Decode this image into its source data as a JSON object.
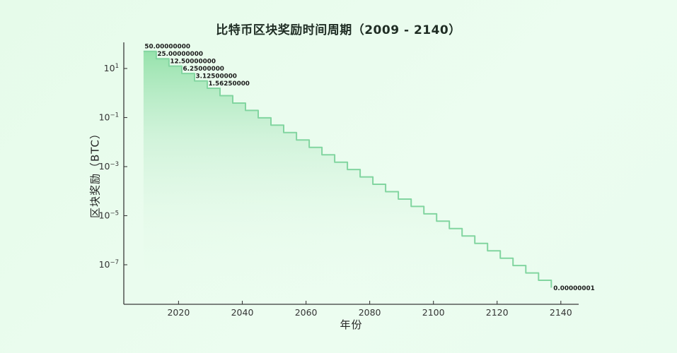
{
  "page": {
    "background_color": "#e9fcee"
  },
  "chart": {
    "title": "比特币区块奖励时间周期（2009 - 2140）",
    "xlabel": "年份",
    "ylabel": "区块奖励（BTC）"
  },
  "chart_data": {
    "type": "area",
    "step_mode": "post",
    "title": "比特币区块奖励时间周期（2009 - 2140）",
    "xlabel": "年份",
    "ylabel": "区块奖励（BTC）",
    "y_scale": "log",
    "grid": false,
    "x_years": [
      2009,
      2013,
      2017,
      2021,
      2025,
      2029,
      2033,
      2037,
      2041,
      2045,
      2049,
      2053,
      2057,
      2061,
      2065,
      2069,
      2073,
      2077,
      2081,
      2085,
      2089,
      2093,
      2097,
      2101,
      2105,
      2109,
      2113,
      2117,
      2121,
      2125,
      2129,
      2133,
      2137
    ],
    "rewards": [
      50,
      25,
      12.5,
      6.25,
      3.125,
      1.5625,
      0.78125,
      0.390625,
      0.1953125,
      0.09765625,
      0.048828125,
      0.0244140625,
      0.01220703125,
      0.006103515625,
      0.0030517578125,
      0.00152587890625,
      0.000762939453125,
      0.0003814697265625,
      0.00019073486328125,
      9.5367431640625e-05,
      4.76837158203125e-05,
      2.384185791015625e-05,
      1.1920928955078125e-05,
      5.9604644775390625e-06,
      2.9802322387695312e-06,
      1.4901161193847656e-06,
      7.450580596923828e-07,
      3.725290298461914e-07,
      1.862645149230957e-07,
      9.313225746154785e-08,
      4.656612873077393e-08,
      2.3283064365386963e-08,
      1.1641532182693481e-08
    ],
    "annotations": [
      {
        "label": "50.00000000",
        "year": 2009,
        "value": 50,
        "placement": "above"
      },
      {
        "label": "25.00000000",
        "year": 2013,
        "value": 25,
        "placement": "above"
      },
      {
        "label": "12.50000000",
        "year": 2017,
        "value": 12.5,
        "placement": "above"
      },
      {
        "label": "6.25000000",
        "year": 2021,
        "value": 6.25,
        "placement": "above"
      },
      {
        "label": "3.12500000",
        "year": 2025,
        "value": 3.125,
        "placement": "above"
      },
      {
        "label": "1.56250000",
        "year": 2029,
        "value": 1.5625,
        "placement": "above"
      },
      {
        "label": "0.00000001",
        "year": 2137,
        "value": 1.1641532182693481e-08,
        "placement": "right"
      }
    ],
    "x_ticks": [
      2020,
      2040,
      2060,
      2080,
      2100,
      2120,
      2140
    ],
    "y_tick_base": "10",
    "y_tick_exponents": [
      1,
      -1,
      -3,
      -5,
      -7
    ],
    "xlim": [
      2002.8,
      2145.6
    ],
    "ylim_log10": [
      -8.61,
      2.065
    ],
    "line_color": "#82d5a0",
    "fill_gradient": [
      "rgba(143,224,166,0.95)",
      "rgba(189,236,203,0.55)",
      "rgba(221,246,227,0.22)",
      "rgba(234,252,238,0)"
    ],
    "axis_color": "#3a3a3a",
    "tick_label_color": "#333333",
    "annotation_color": "#1a1a1a"
  }
}
